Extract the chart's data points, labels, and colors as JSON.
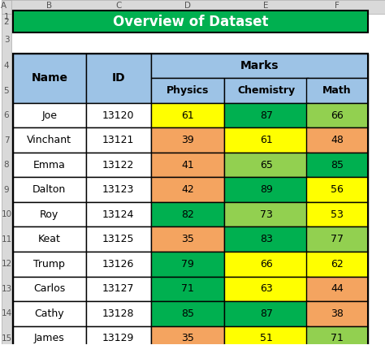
{
  "title": "Overview of Dataset",
  "title_bg": "#00B050",
  "title_color": "#FFFFFF",
  "header1_bg": "#9DC3E6",
  "header1_color": "#000000",
  "col_headers": [
    "Name",
    "ID",
    "Physics",
    "Chemistry",
    "Math"
  ],
  "marks_header": "Marks",
  "names": [
    "Joe",
    "Vinchant",
    "Emma",
    "Dalton",
    "Roy",
    "Keat",
    "Trump",
    "Carlos",
    "Cathy",
    "James"
  ],
  "ids": [
    13120,
    13121,
    13122,
    13123,
    13124,
    13125,
    13126,
    13127,
    13128,
    13129
  ],
  "physics": [
    61,
    39,
    41,
    42,
    82,
    35,
    79,
    71,
    85,
    35
  ],
  "chemistry": [
    87,
    61,
    65,
    89,
    73,
    83,
    66,
    63,
    87,
    51
  ],
  "math": [
    66,
    48,
    85,
    56,
    53,
    77,
    62,
    44,
    38,
    71
  ],
  "physics_colors": [
    "#FFFF00",
    "#F4A460",
    "#F4A460",
    "#F4A460",
    "#00B050",
    "#F4A460",
    "#00B050",
    "#00B050",
    "#00B050",
    "#F4A460"
  ],
  "chemistry_colors": [
    "#00B050",
    "#FFFF00",
    "#92D050",
    "#00B050",
    "#92D050",
    "#00B050",
    "#FFFF00",
    "#FFFF00",
    "#00B050",
    "#FFFF00"
  ],
  "math_colors": [
    "#92D050",
    "#F4A460",
    "#00B050",
    "#FFFF00",
    "#FFFF00",
    "#92D050",
    "#FFFF00",
    "#F4A460",
    "#F4A460",
    "#92D050"
  ],
  "outer_border": "#000000",
  "cell_border": "#000000",
  "fig_bg": "#FFFFFF",
  "grid_bg": "#FFFFFF"
}
